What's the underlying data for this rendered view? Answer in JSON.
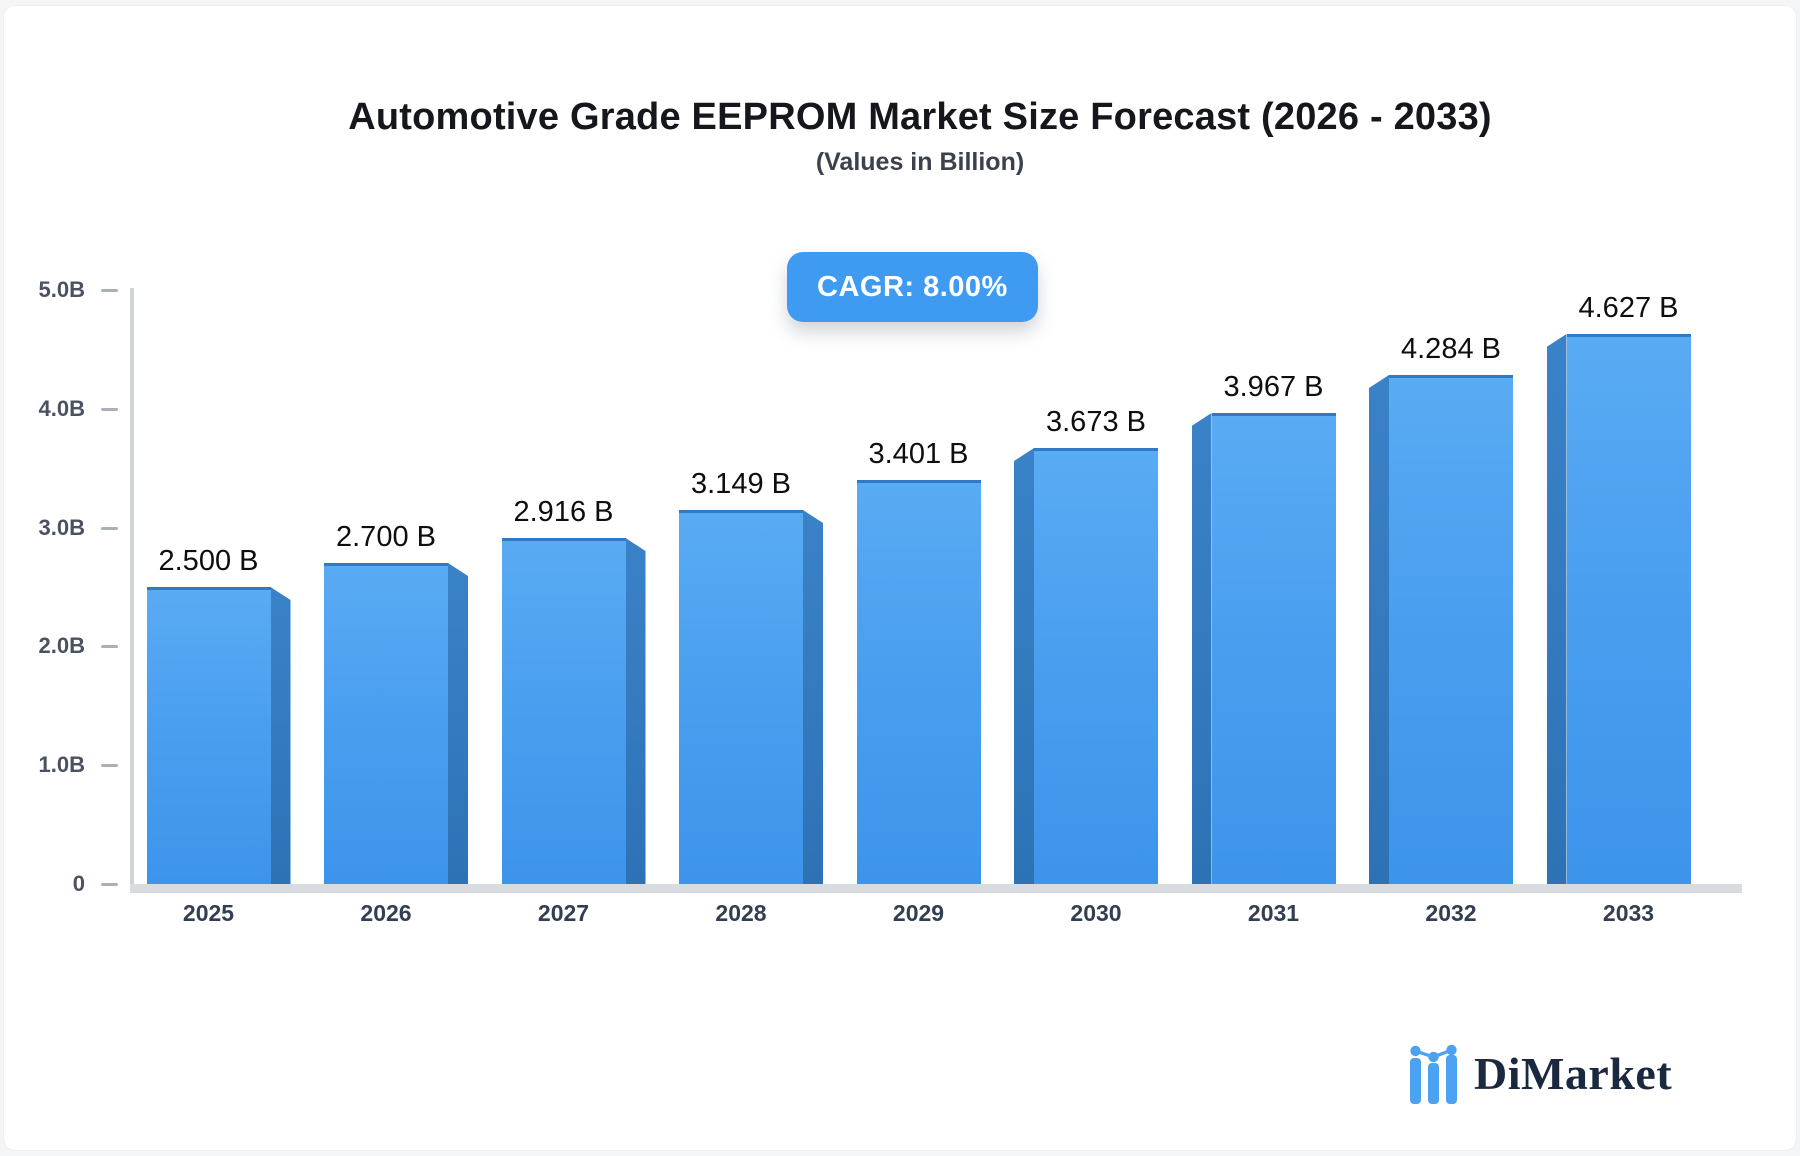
{
  "header": {
    "title": "Automotive Grade EEPROM Market Size Forecast (2026 - 2033)",
    "subtitle": "(Values in Billion)"
  },
  "badge": {
    "label": "CAGR: 8.00%",
    "background": "#3f9bf1",
    "text_color": "#ffffff"
  },
  "brand": {
    "name": "DiMarket",
    "icon": "dimarket-bars-logo-icon",
    "icon_color": "#4aa2f0",
    "text_color": "#1b2940"
  },
  "chart_data": {
    "type": "bar",
    "title": "Automotive Grade EEPROM Market Size Forecast (2026 - 2033)",
    "subtitle": "(Values in Billion)",
    "cagr_annotation": "CAGR: 8.00%",
    "categories": [
      "2025",
      "2026",
      "2027",
      "2028",
      "2029",
      "2030",
      "2031",
      "2032",
      "2033"
    ],
    "values": [
      2.5,
      2.7,
      2.916,
      3.149,
      3.401,
      3.673,
      3.967,
      4.284,
      4.627
    ],
    "value_labels": [
      "2.500 B",
      "2.700 B",
      "2.916 B",
      "3.149 B",
      "3.401 B",
      "3.673 B",
      "3.967 B",
      "4.284 B",
      "4.627 B"
    ],
    "xlabel": "",
    "ylabel": "",
    "ylim": [
      0,
      5.0
    ],
    "ytick_labels": [
      "5.0B",
      "4.0B",
      "3.0B",
      "2.0B",
      "1.0B",
      "0"
    ],
    "ytick_values": [
      5,
      4,
      3,
      2,
      1,
      0
    ],
    "grid": false,
    "legend": "none",
    "style": "3d-perspective-toward-center",
    "bar_face_top_color": "#59abf3",
    "bar_face_bottom_color": "#3d94eb",
    "bar_side_color": "#2d72b5",
    "bar_top_edge_color": "#2f7ac3",
    "axis_color": "#ced4da",
    "baseline_color": "#d8dbdf"
  }
}
